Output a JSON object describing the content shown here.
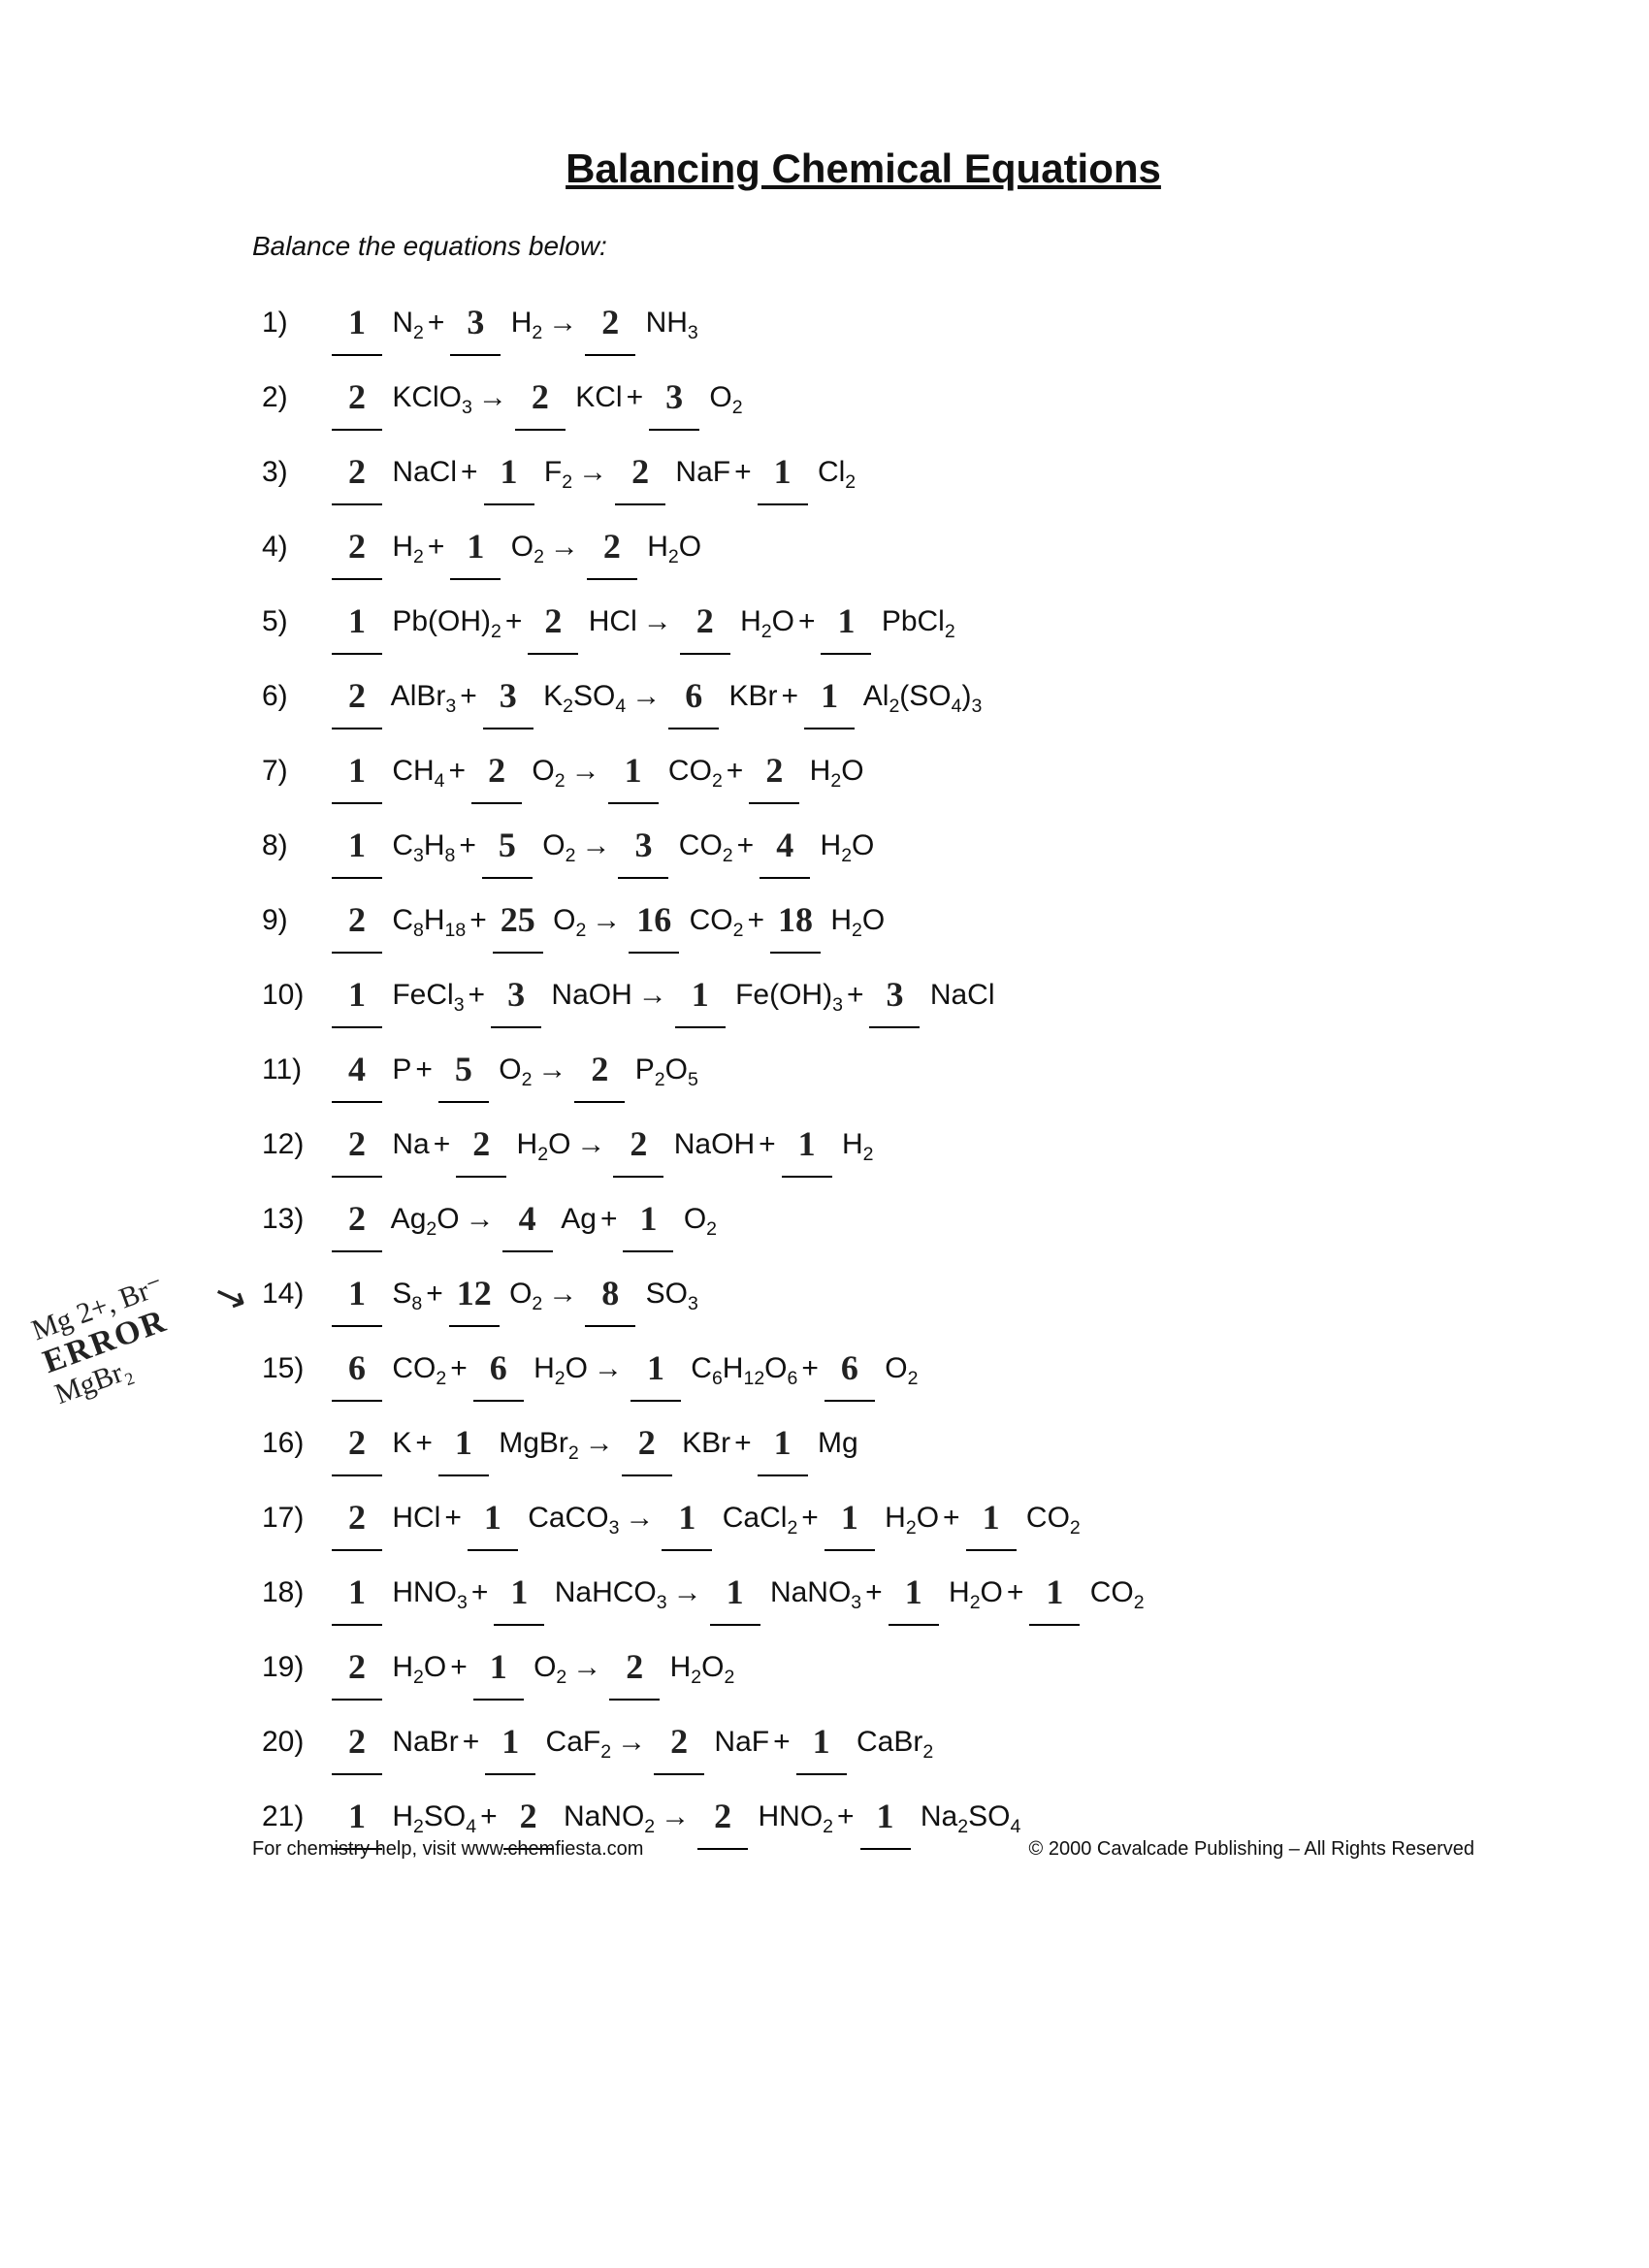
{
  "title": "Balancing Chemical Equations",
  "instructions": "Balance the equations below:",
  "arrow_glyph": "→",
  "equations": [
    {
      "n": "1)",
      "parts": [
        {
          "c": "1",
          "f": "N<sub>2</sub>"
        },
        "plus",
        {
          "c": "3",
          "f": "H<sub>2</sub>"
        },
        "arrow",
        {
          "c": "2",
          "f": "NH<sub>3</sub>"
        }
      ]
    },
    {
      "n": "2)",
      "parts": [
        {
          "c": "2",
          "f": "KClO<sub>3</sub>"
        },
        "arrow",
        {
          "c": "2",
          "f": "KCl"
        },
        "plus",
        {
          "c": "3",
          "f": "O<sub>2</sub>"
        }
      ]
    },
    {
      "n": "3)",
      "parts": [
        {
          "c": "2",
          "f": "NaCl"
        },
        "plus",
        {
          "c": "1",
          "f": "F<sub>2</sub>"
        },
        "arrow",
        {
          "c": "2",
          "f": "NaF"
        },
        "plus",
        {
          "c": "1",
          "f": "Cl<sub>2</sub>"
        }
      ]
    },
    {
      "n": "4)",
      "parts": [
        {
          "c": "2",
          "f": "H<sub>2</sub>"
        },
        "plus",
        {
          "c": "1",
          "f": "O<sub>2</sub>"
        },
        "arrow",
        {
          "c": "2",
          "f": "H<sub>2</sub>O"
        }
      ]
    },
    {
      "n": "5)",
      "parts": [
        {
          "c": "1",
          "f": "Pb(OH)<sub>2</sub>"
        },
        "plus",
        {
          "c": "2",
          "f": "HCl"
        },
        "arrow",
        {
          "c": "2",
          "f": "H<sub>2</sub>O"
        },
        "plus",
        {
          "c": "1",
          "f": "PbCl<sub>2</sub>"
        }
      ]
    },
    {
      "n": "6)",
      "parts": [
        {
          "c": "2",
          "f": "AlBr<sub>3</sub>"
        },
        "plus",
        {
          "c": "3",
          "f": "K<sub>2</sub>SO<sub>4</sub>"
        },
        "arrow",
        {
          "c": "6",
          "f": "KBr"
        },
        "plus",
        {
          "c": "1",
          "f": "Al<sub>2</sub>(SO<sub>4</sub>)<sub>3</sub>"
        }
      ]
    },
    {
      "n": "7)",
      "parts": [
        {
          "c": "1",
          "f": "CH<sub>4</sub>"
        },
        "plus",
        {
          "c": "2",
          "f": "O<sub>2</sub>"
        },
        "arrow",
        {
          "c": "1",
          "f": "CO<sub>2</sub>"
        },
        "plus",
        {
          "c": "2",
          "f": "H<sub>2</sub>O"
        }
      ]
    },
    {
      "n": "8)",
      "parts": [
        {
          "c": "1",
          "f": "C<sub>3</sub>H<sub>8</sub>"
        },
        "plus",
        {
          "c": "5",
          "f": "O<sub>2</sub>"
        },
        "arrow",
        {
          "c": "3",
          "f": "CO<sub>2</sub>"
        },
        "plus",
        {
          "c": "4",
          "f": "H<sub>2</sub>O"
        }
      ]
    },
    {
      "n": "9)",
      "parts": [
        {
          "c": "2",
          "f": "C<sub>8</sub>H<sub>18</sub>"
        },
        "plus",
        {
          "c": "25",
          "f": "O<sub>2</sub>"
        },
        "arrow",
        {
          "c": "16",
          "f": "CO<sub>2</sub>"
        },
        "plus",
        {
          "c": "18",
          "f": "H<sub>2</sub>O"
        }
      ]
    },
    {
      "n": "10)",
      "parts": [
        {
          "c": "1",
          "f": "FeCl<sub>3</sub>"
        },
        "plus",
        {
          "c": "3",
          "f": "NaOH"
        },
        "arrow",
        {
          "c": "1",
          "f": "Fe(OH)<sub>3</sub>"
        },
        "plus",
        {
          "c": "3",
          "f": "NaCl"
        }
      ]
    },
    {
      "n": "11)",
      "parts": [
        {
          "c": "4",
          "f": "P"
        },
        "plus",
        {
          "c": "5",
          "f": "O<sub>2</sub>"
        },
        "arrow",
        {
          "c": "2",
          "f": "P<sub>2</sub>O<sub>5</sub>"
        }
      ]
    },
    {
      "n": "12)",
      "parts": [
        {
          "c": "2",
          "f": "Na"
        },
        "plus",
        {
          "c": "2",
          "f": "H<sub>2</sub>O"
        },
        "arrow",
        {
          "c": "2",
          "f": "NaOH"
        },
        "plus",
        {
          "c": "1",
          "f": "H<sub>2</sub>"
        }
      ]
    },
    {
      "n": "13)",
      "parts": [
        {
          "c": "2",
          "f": "Ag<sub>2</sub>O"
        },
        "arrow",
        {
          "c": "4",
          "f": "Ag"
        },
        "plus",
        {
          "c": "1",
          "f": "O<sub>2</sub>"
        }
      ]
    },
    {
      "n": "14)",
      "parts": [
        {
          "c": "1",
          "f": "S<sub>8</sub>"
        },
        "plus",
        {
          "c": "12",
          "f": "O<sub>2</sub>"
        },
        "arrow",
        {
          "c": "8",
          "f": "SO<sub>3</sub>"
        }
      ]
    },
    {
      "n": "15)",
      "parts": [
        {
          "c": "6",
          "f": "CO<sub>2</sub>"
        },
        "plus",
        {
          "c": "6",
          "f": "H<sub>2</sub>O"
        },
        "arrow",
        {
          "c": "1",
          "f": "C<sub>6</sub>H<sub>12</sub>O<sub>6</sub>"
        },
        "plus",
        {
          "c": "6",
          "f": "O<sub>2</sub>"
        }
      ]
    },
    {
      "n": "16)",
      "parts": [
        {
          "c": "2",
          "f": "K"
        },
        "plus",
        {
          "c": "1",
          "f": "MgBr<sub>2</sub>"
        },
        "arrow",
        {
          "c": "2",
          "f": "KBr"
        },
        "plus",
        {
          "c": "1",
          "f": "Mg"
        }
      ]
    },
    {
      "n": "17)",
      "parts": [
        {
          "c": "2",
          "f": "HCl"
        },
        "plus",
        {
          "c": "1",
          "f": "CaCO<sub>3</sub>"
        },
        "arrow",
        {
          "c": "1",
          "f": "CaCl<sub>2</sub>"
        },
        "plus",
        {
          "c": "1",
          "f": "H<sub>2</sub>O"
        },
        "plus",
        {
          "c": "1",
          "f": "CO<sub>2</sub>"
        }
      ]
    },
    {
      "n": "18)",
      "parts": [
        {
          "c": "1",
          "f": "HNO<sub>3</sub>"
        },
        "plus",
        {
          "c": "1",
          "f": "NaHCO<sub>3</sub>"
        },
        "arrow",
        {
          "c": "1",
          "f": "NaNO<sub>3</sub>"
        },
        "plus",
        {
          "c": "1",
          "f": "H<sub>2</sub>O"
        },
        "plus",
        {
          "c": "1",
          "f": "CO<sub>2</sub>"
        }
      ]
    },
    {
      "n": "19)",
      "parts": [
        {
          "c": "2",
          "f": "H<sub>2</sub>O"
        },
        "plus",
        {
          "c": "1",
          "f": "O<sub>2</sub>"
        },
        "arrow",
        {
          "c": "2",
          "f": "H<sub>2</sub>O<sub>2</sub>"
        }
      ]
    },
    {
      "n": "20)",
      "parts": [
        {
          "c": "2",
          "f": "NaBr"
        },
        "plus",
        {
          "c": "1",
          "f": "CaF<sub>2</sub>"
        },
        "arrow",
        {
          "c": "2",
          "f": "NaF"
        },
        "plus",
        {
          "c": "1",
          "f": "CaBr<sub>2</sub>"
        }
      ]
    },
    {
      "n": "21)",
      "parts": [
        {
          "c": "1",
          "f": "H<sub>2</sub>SO<sub>4</sub>"
        },
        "plus",
        {
          "c": "2",
          "f": "NaNO<sub>2</sub>"
        },
        "arrow",
        {
          "c": "2",
          "f": "HNO<sub>2</sub>"
        },
        "plus",
        {
          "c": "1",
          "f": "Na<sub>2</sub>SO<sub>4</sub>"
        }
      ]
    }
  ],
  "margin_note": {
    "line1": "Mg 2+, Br⁻",
    "line2": "ERROR",
    "line3": "MgBr₂"
  },
  "footer_left": "For chemistry help, visit www.chemfiesta.com",
  "footer_right": "© 2000 Cavalcade Publishing – All Rights Reserved"
}
